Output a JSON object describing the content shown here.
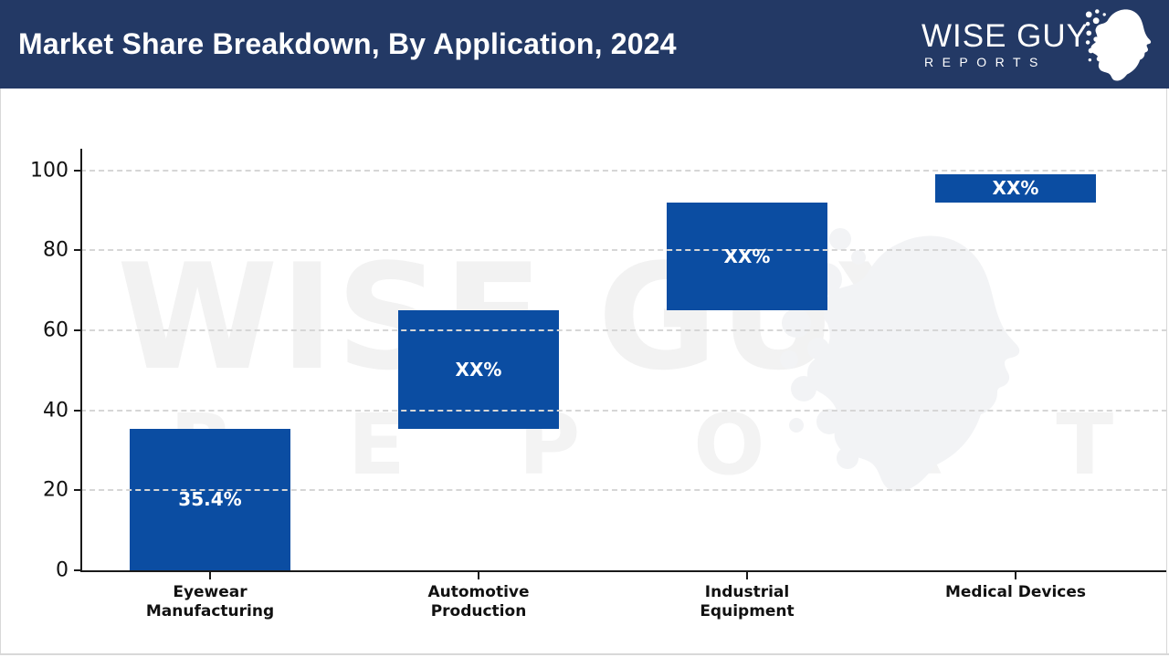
{
  "header": {
    "title": "Market Share Breakdown, By Application, 2024",
    "logo": {
      "line1": "WISE GUY",
      "line2": "REPORTS"
    }
  },
  "watermark": {
    "line1": "WISE GUY",
    "line2": "REPORTS"
  },
  "colors": {
    "header_bg": "#233965",
    "bar": "#0b4da2",
    "grid": "#d6d6d6",
    "axis": "#1a1a1a",
    "watermark": "#f2f2f2",
    "title_text": "#ffffff",
    "bar_label_text": "#ffffff"
  },
  "chart_data": {
    "type": "bar",
    "subtype": "waterfall-cumulative",
    "title": "Market Share Breakdown, By Application, 2024",
    "categories": [
      "Eyewear Manufacturing",
      "Automotive Production",
      "Industrial Equipment",
      "Medical Devices"
    ],
    "category_label_lines": [
      [
        "Eyewear",
        "Manufacturing"
      ],
      [
        "Automotive",
        "Production"
      ],
      [
        "Industrial",
        "Equipment"
      ],
      [
        "Medical Devices"
      ]
    ],
    "bars": [
      {
        "category": "Eyewear Manufacturing",
        "start": 0,
        "end": 35.4,
        "label": "35.4%"
      },
      {
        "category": "Automotive Production",
        "start": 35.4,
        "end": 65,
        "label": "XX%"
      },
      {
        "category": "Industrial Equipment",
        "start": 65,
        "end": 92,
        "label": "XX%"
      },
      {
        "category": "Medical Devices",
        "start": 92,
        "end": 99,
        "label": "XX%"
      }
    ],
    "xlabel": "",
    "ylabel": "",
    "ylim": [
      0,
      105
    ],
    "yticks": [
      0,
      20,
      40,
      60,
      80,
      100
    ],
    "grid": "horizontal-dashed",
    "legend": "none",
    "bar_color": "#0b4da2"
  }
}
